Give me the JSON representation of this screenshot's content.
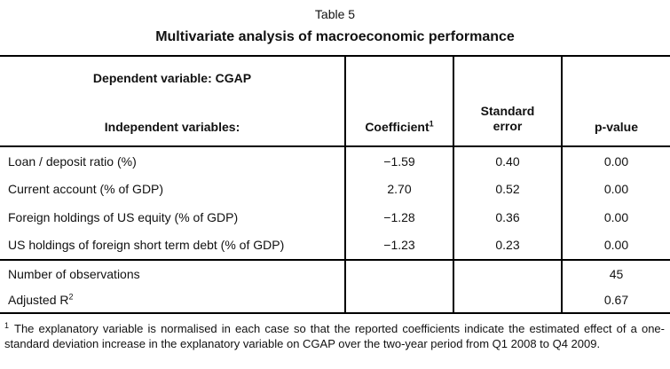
{
  "table_label": "Table 5",
  "title": "Multivariate analysis of macroeconomic performance",
  "header": {
    "dependent_variable": "Dependent variable: CGAP",
    "independent_variables": "Independent variables:",
    "coefficient": "Coefficient",
    "coefficient_sup": "1",
    "standard_error": "Standard error",
    "p_value": "p-value"
  },
  "rows": [
    {
      "label": "Loan / deposit ratio (%)",
      "coefficient": "−1.59",
      "standard_error": "0.40",
      "p_value": "0.00"
    },
    {
      "label": "Current account (% of GDP)",
      "coefficient": "2.70",
      "standard_error": "0.52",
      "p_value": "0.00"
    },
    {
      "label": "Foreign holdings of US equity (% of GDP)",
      "coefficient": "−1.28",
      "standard_error": "0.36",
      "p_value": "0.00"
    },
    {
      "label": "US holdings of foreign short term debt (% of GDP)",
      "coefficient": "−1.23",
      "standard_error": "0.23",
      "p_value": "0.00"
    }
  ],
  "stats": [
    {
      "label": "Number of observations",
      "value": "45"
    },
    {
      "label_base": "Adjusted R",
      "label_sup": "2",
      "value": "0.67"
    }
  ],
  "footnote": {
    "mark": "1",
    "text": "The explanatory variable is normalised in each case so that the reported coefficients indicate the estimated effect of a one-standard deviation increase in the explanatory variable on CGAP over the two-year period from Q1 2008 to Q4 2009."
  },
  "colors": {
    "text": "#111111",
    "rule": "#000000",
    "background": "#ffffff"
  },
  "chart_data": {
    "type": "table",
    "caption": "Table 5",
    "title": "Multivariate analysis of macroeconomic performance",
    "dependent_variable": "CGAP",
    "columns": [
      "Independent variables:",
      "Coefficient",
      "Standard error",
      "p-value"
    ],
    "rows": [
      [
        "Loan / deposit ratio (%)",
        -1.59,
        0.4,
        0.0
      ],
      [
        "Current account (% of GDP)",
        2.7,
        0.52,
        0.0
      ],
      [
        "Foreign holdings of US equity (% of GDP)",
        -1.28,
        0.36,
        0.0
      ],
      [
        "US holdings of foreign short term debt (% of GDP)",
        -1.23,
        0.23,
        0.0
      ]
    ],
    "summary": {
      "number_of_observations": 45,
      "adjusted_r_squared": 0.67
    }
  }
}
